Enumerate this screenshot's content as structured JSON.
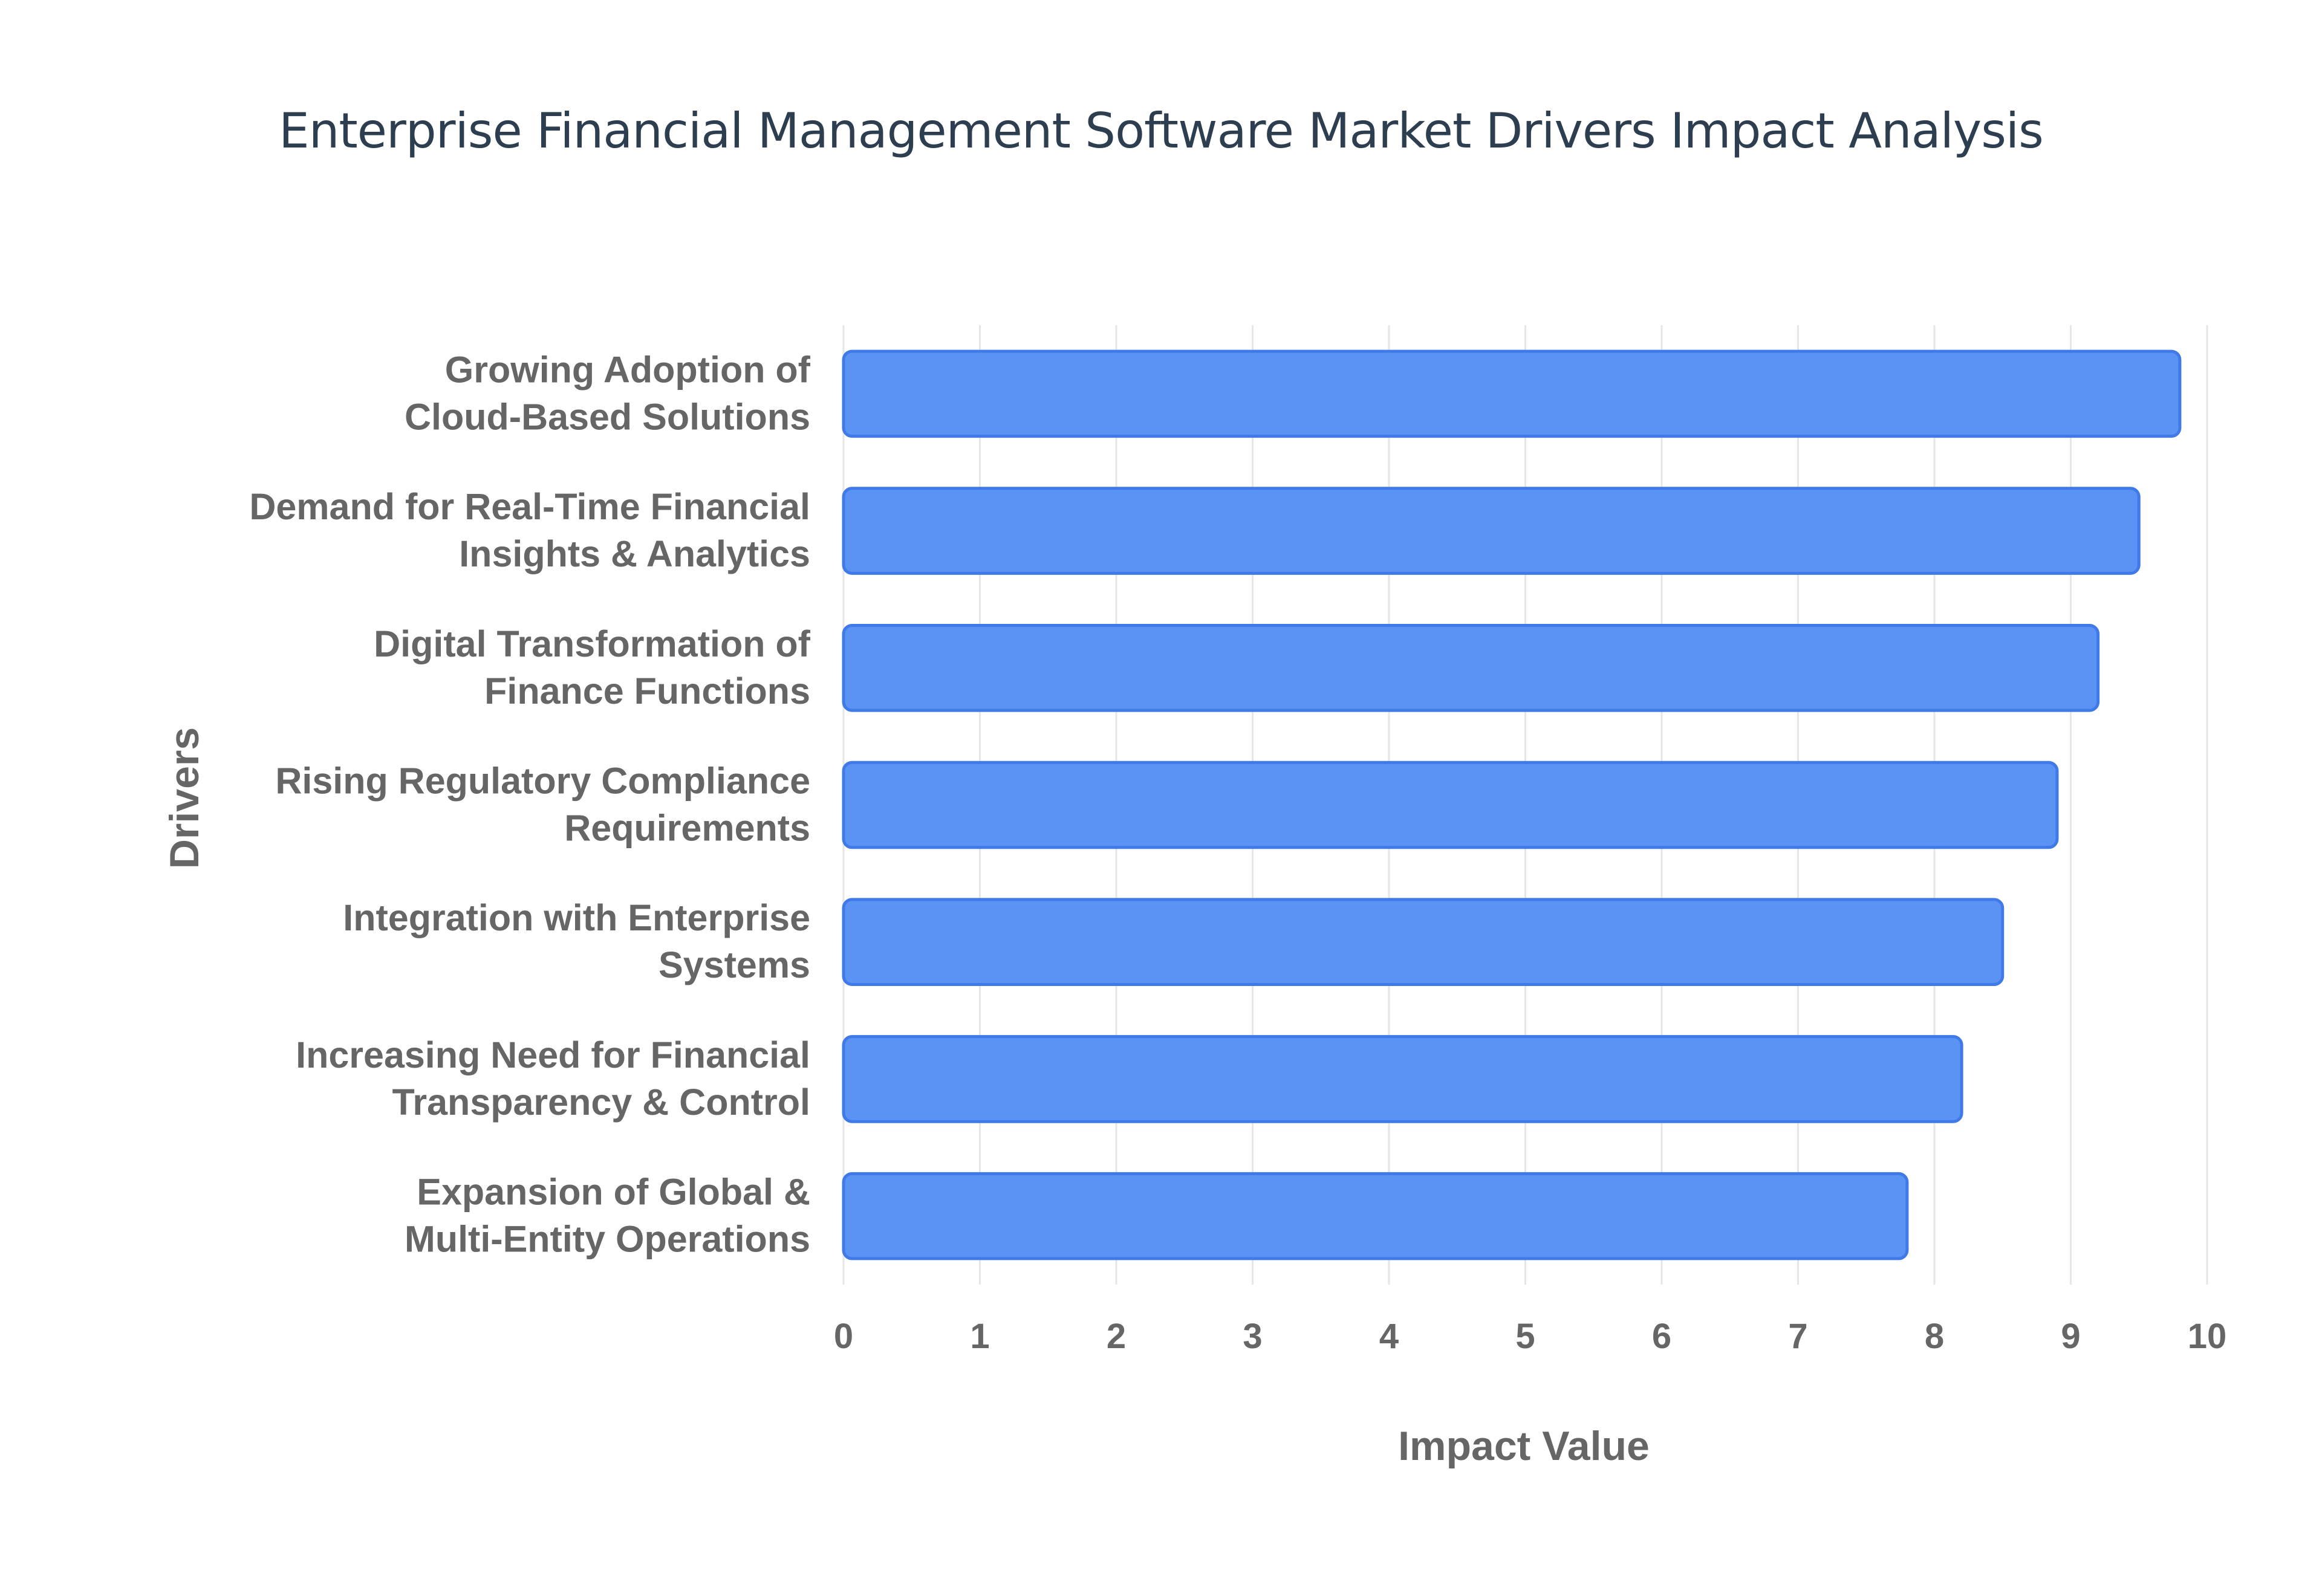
{
  "chart_data": {
    "type": "bar",
    "orientation": "horizontal",
    "title": "Enterprise Financial Management Software Market Drivers Impact Analysis",
    "xlabel": "Impact Value",
    "ylabel": "Drivers",
    "xlim": [
      0,
      10
    ],
    "x_ticks": [
      "0",
      "1",
      "2",
      "3",
      "4",
      "5",
      "6",
      "7",
      "8",
      "9",
      "10"
    ],
    "grid": true,
    "categories": [
      [
        "Growing Adoption of",
        "Cloud-Based Solutions"
      ],
      [
        "Demand for Real-Time Financial",
        "Insights & Analytics"
      ],
      [
        "Digital Transformation of",
        "Finance Functions"
      ],
      [
        "Rising Regulatory Compliance",
        "Requirements"
      ],
      [
        "Integration with Enterprise",
        "Systems"
      ],
      [
        "Increasing Need for Financial",
        "Transparency & Control"
      ],
      [
        "Expansion of Global &",
        "Multi-Entity Operations"
      ]
    ],
    "values": [
      9.8,
      9.5,
      9.2,
      8.9,
      8.5,
      8.2,
      7.8
    ],
    "colors": {
      "bar_fill": "#5b93f4",
      "bar_stroke": "#3f7ae8",
      "grid": "#e6e6e6",
      "text": "#666666",
      "title": "#2c3e50"
    }
  }
}
